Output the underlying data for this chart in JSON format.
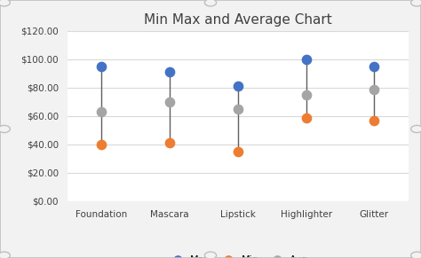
{
  "title": "Min Max and Average Chart",
  "categories": [
    "Foundation",
    "Mascara",
    "Lipstick",
    "Highlighter",
    "Glitter"
  ],
  "max_values": [
    95,
    91,
    81,
    100,
    95
  ],
  "min_values": [
    40,
    41,
    35,
    59,
    57
  ],
  "avg_values": [
    63,
    70,
    65,
    75,
    79
  ],
  "max_color": "#4472C4",
  "min_color": "#ED7D31",
  "avg_color": "#A5A5A5",
  "line_color": "#606060",
  "ylim": [
    0,
    120
  ],
  "yticks": [
    0,
    20,
    40,
    60,
    80,
    100,
    120
  ],
  "background_color": "#F2F2F2",
  "plot_bg_color": "#FFFFFF",
  "grid_color": "#D9D9D9",
  "border_color": "#BFBFBF",
  "marker_size": 55,
  "title_fontsize": 11,
  "label_fontsize": 8,
  "tick_fontsize": 7.5
}
